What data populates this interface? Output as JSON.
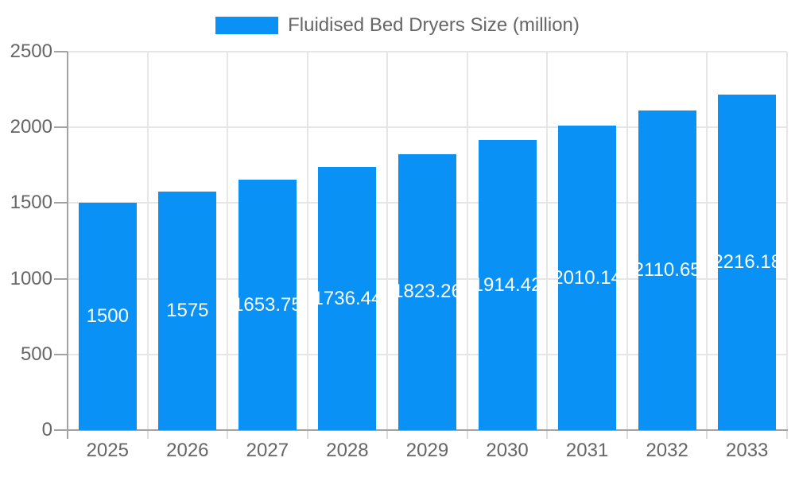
{
  "legend": {
    "label": "Fluidised Bed Dryers Size (million)"
  },
  "colors": {
    "bar": "#0991f5",
    "grid": "#e6e6e6",
    "axis": "#a3a3a3",
    "x_tick": "#dcdcdc",
    "text": "#666666",
    "bar_label_text": "#ffffff",
    "background": "#ffffff"
  },
  "chart_data": {
    "type": "bar",
    "title": "Fluidised Bed Dryers Size (million)",
    "categories": [
      "2025",
      "2026",
      "2027",
      "2028",
      "2029",
      "2030",
      "2031",
      "2032",
      "2033"
    ],
    "values": [
      1500,
      1575,
      1653.75,
      1736.44,
      1823.26,
      1914.42,
      2010.14,
      2110.65,
      2216.18
    ],
    "value_labels": [
      "1500",
      "1575",
      "1653.75",
      "1736.44",
      "1823.26",
      "1914.42",
      "2010.14",
      "2110.65",
      "2216.18"
    ],
    "xlabel": "",
    "ylabel": "",
    "ylim": [
      0,
      2500
    ],
    "yticks": [
      0,
      500,
      1000,
      1500,
      2000,
      2500
    ],
    "grid": true,
    "legend_position": "top",
    "series_color": "#0991f5"
  }
}
